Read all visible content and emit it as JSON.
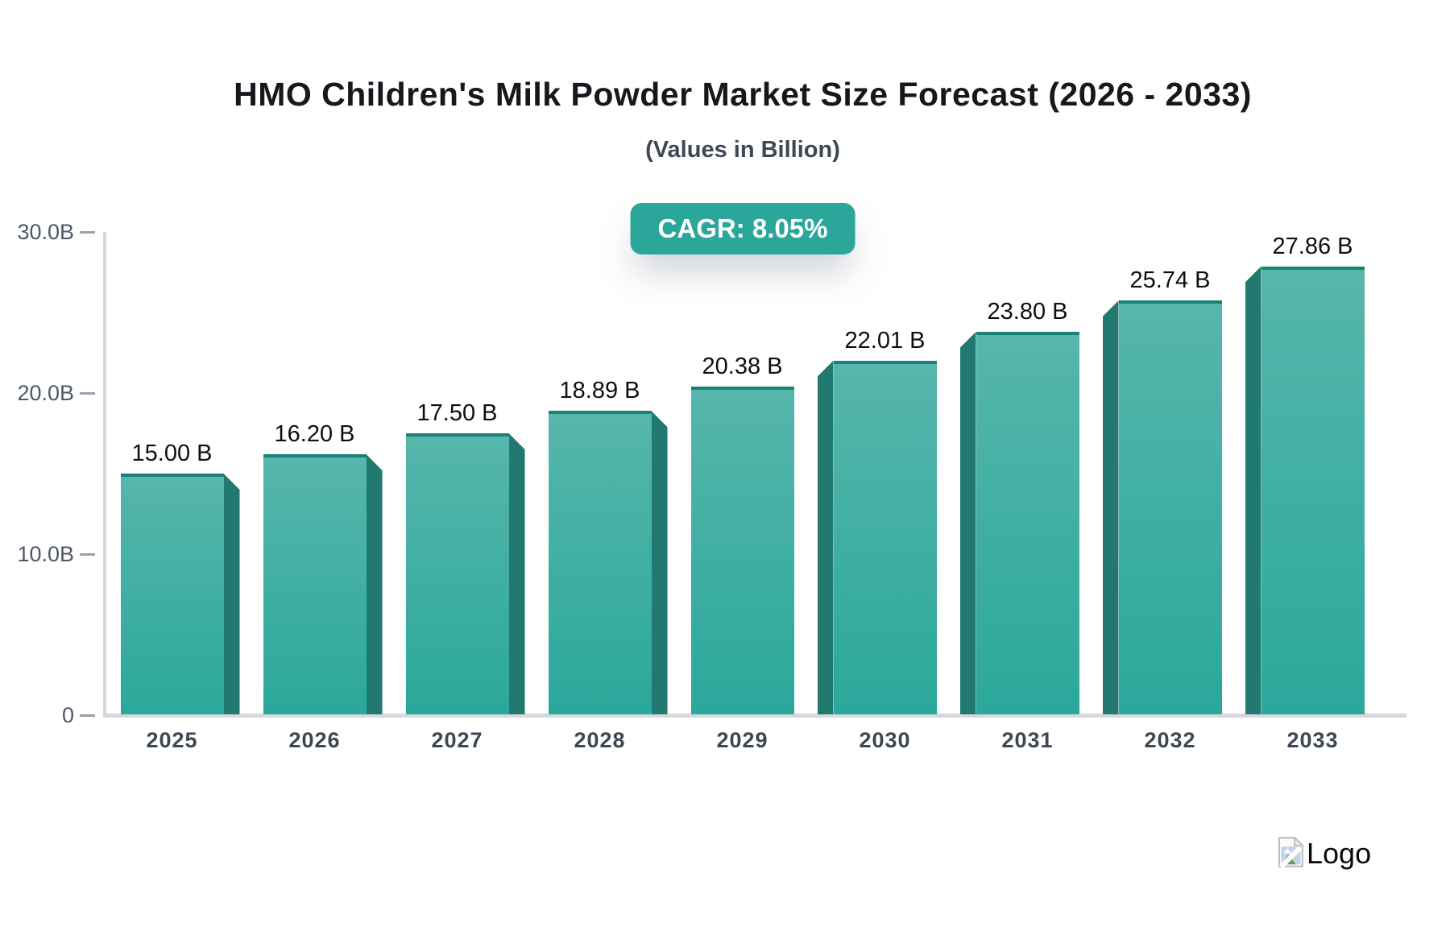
{
  "header": {
    "title": "HMO Children's Milk Powder Market Size Forecast (2026 - 2033)",
    "subtitle": "(Values in Billion)",
    "cagr_badge": "CAGR: 8.05%"
  },
  "chart_data": {
    "type": "bar",
    "title": "HMO Children's Milk Powder Market Size Forecast (2026 - 2033)",
    "subtitle": "(Values in Billion)",
    "cagr_badge": "CAGR: 8.05%",
    "categories": [
      "2025",
      "2026",
      "2027",
      "2028",
      "2029",
      "2030",
      "2031",
      "2032",
      "2033"
    ],
    "values": [
      15.0,
      16.2,
      17.5,
      18.89,
      20.38,
      22.01,
      23.8,
      25.74,
      27.86
    ],
    "value_labels": [
      "15.00 B",
      "16.20 B",
      "17.50 B",
      "18.89 B",
      "20.38 B",
      "22.01 B",
      "23.80 B",
      "25.74 B",
      "27.86 B"
    ],
    "unit": "Billion",
    "xlabel": "",
    "ylabel": "",
    "ylim": [
      0,
      30
    ],
    "yticks": [
      {
        "label": "0",
        "value": 0
      },
      {
        "label": "10.0B",
        "value": 10
      },
      {
        "label": "20.0B",
        "value": 20
      },
      {
        "label": "30.0B",
        "value": 30
      }
    ],
    "grid": false,
    "legend": false,
    "bar_style": "3d-beveled-teal"
  },
  "palette": {
    "background": "#ffffff",
    "title": "#15181d",
    "subtitle": "#3d4857",
    "badge_bg": "#2aa69a",
    "badge_text": "#ffffff",
    "bar_top": "#57b6ab",
    "bar_bottom": "#2aa89b",
    "bar_edge": "#1b8176",
    "bar_side": "#21796f",
    "axis_line": "#d6d8dc",
    "tick": "#9aa2ad",
    "y_label": "#4d5868",
    "x_label": "#3d4654",
    "value_label": "#0d0f12"
  },
  "footer": {
    "logo_alt": "Logo",
    "logo_icon": "broken-image-icon"
  }
}
